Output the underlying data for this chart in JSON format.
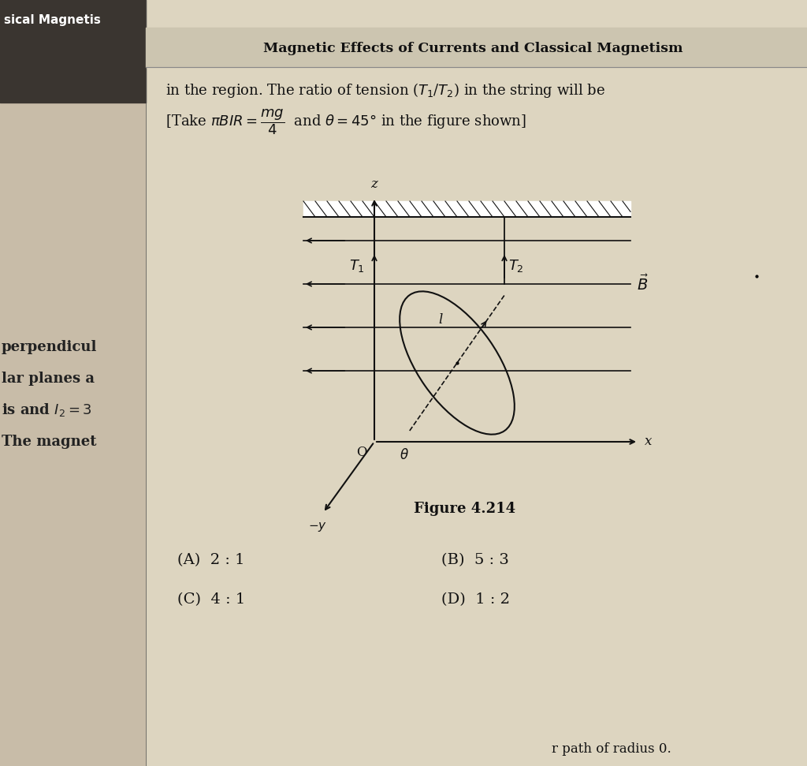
{
  "page_bg": "#ddd5c0",
  "left_bg": "#c8bca8",
  "left_dark_bg": "#3a3530",
  "title": "Magnetic Effects of Currents and Classical Magnetism",
  "figure_caption": "Figure 4.214",
  "options_A": "(A)  2 : 1",
  "options_B": "(B)  5 : 3",
  "options_C": "(C)  4 : 1",
  "options_D": "(D)  1 : 2",
  "line_color": "#111111",
  "text_color": "#111111",
  "left_text_color": "#222222",
  "shadow_color": "#8a7a68"
}
